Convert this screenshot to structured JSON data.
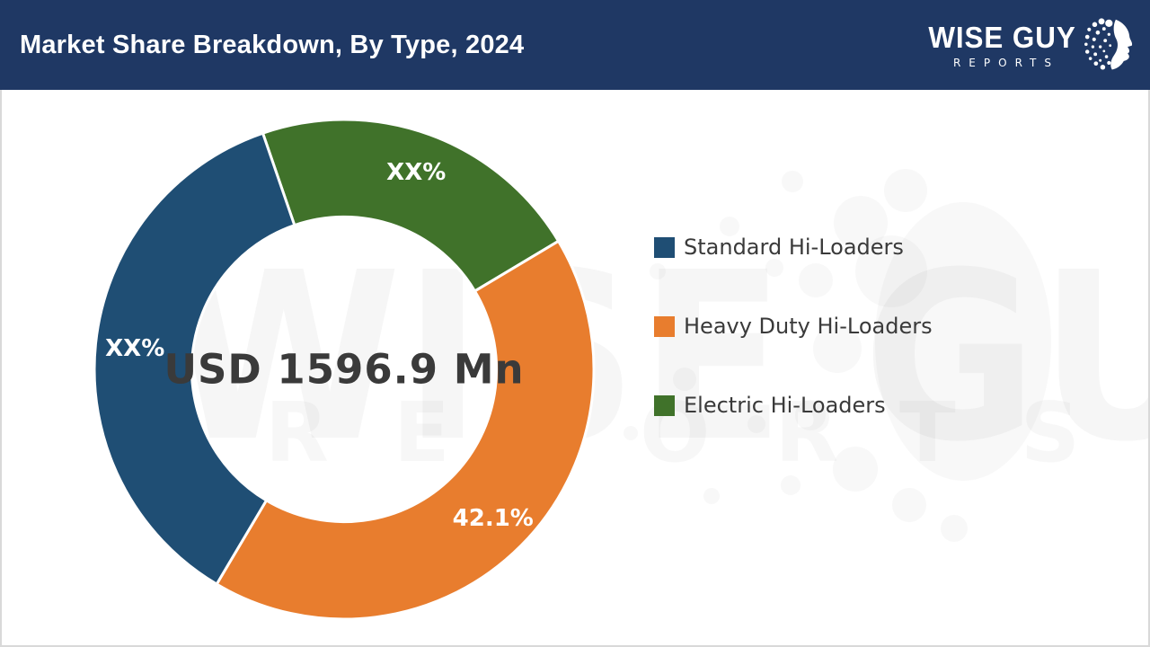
{
  "header": {
    "title": "Market Share Breakdown, By Type, 2024",
    "logo": {
      "brand_top": "WISE GUY",
      "brand_bottom": "REPORTS"
    }
  },
  "colors": {
    "header_background": "#1f3864",
    "standard_blue": "#1f4e74",
    "heavy_duty_orange": "#e87d2e",
    "electric_green": "#40722a",
    "text_dark": "#3a3a3a",
    "page_frame_gray": "#d9d9d9",
    "label_white": "#ffffff"
  },
  "chart_data": {
    "type": "pie",
    "subtype": "donut",
    "title": "Market Share Breakdown, By Type, 2024",
    "center_label": "USD 1596.9 Mn",
    "legend_position": "right",
    "donut_hole_ratio": 0.61,
    "start_angle_deg_clockwise_from_north": 341,
    "segments": [
      {
        "name": "Standard Hi-Loaders",
        "display_label": "XX%",
        "value_pct": 36.2,
        "color": "#1f4e74"
      },
      {
        "name": "Heavy Duty Hi-Loaders",
        "display_label": "42.1%",
        "value_pct": 42.1,
        "color": "#e87d2e"
      },
      {
        "name": "Electric Hi-Loaders",
        "display_label": "XX%",
        "value_pct": 21.7,
        "color": "#40722a"
      }
    ]
  },
  "watermark": {
    "line1": "WISE GUY",
    "line2": "REPORTS"
  }
}
